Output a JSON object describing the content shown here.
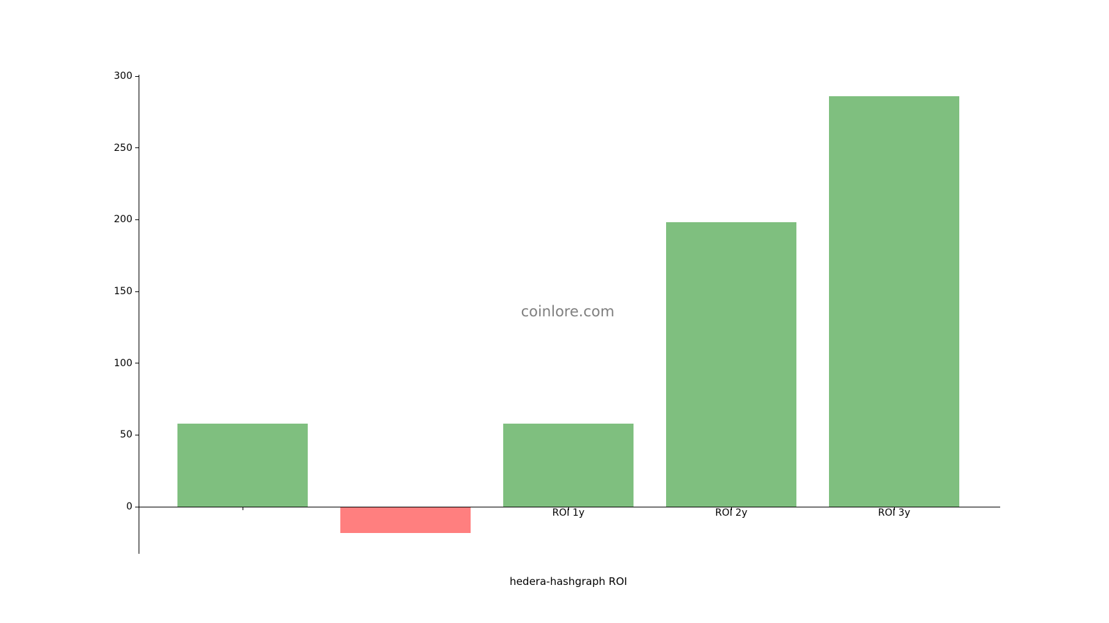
{
  "watermark_text": "coinlore.com",
  "chart_data": {
    "type": "bar",
    "title": "",
    "xlabel": "hedera-hashgraph ROI",
    "ylabel": "",
    "categories": [
      "",
      "",
      "ROI 1y",
      "ROI 2y",
      "ROI 3y"
    ],
    "values": [
      58,
      -18.5,
      58,
      198,
      286
    ],
    "bar_colors": [
      "#7fbf7f",
      "#ff7f7f",
      "#7fbf7f",
      "#7fbf7f",
      "#7fbf7f"
    ],
    "positive_color": "#7fbf7f",
    "negative_color": "#ff7f7f",
    "yticks": [
      0,
      50,
      100,
      150,
      200,
      250,
      300
    ],
    "ylim": [
      -33,
      300
    ],
    "grid": false,
    "legend": null,
    "watermark": "coinlore.com",
    "axis_color": "#000000",
    "tick_text_color": "#000000",
    "watermark_color": "#7f7f7f",
    "background_color": "#ffffff"
  }
}
